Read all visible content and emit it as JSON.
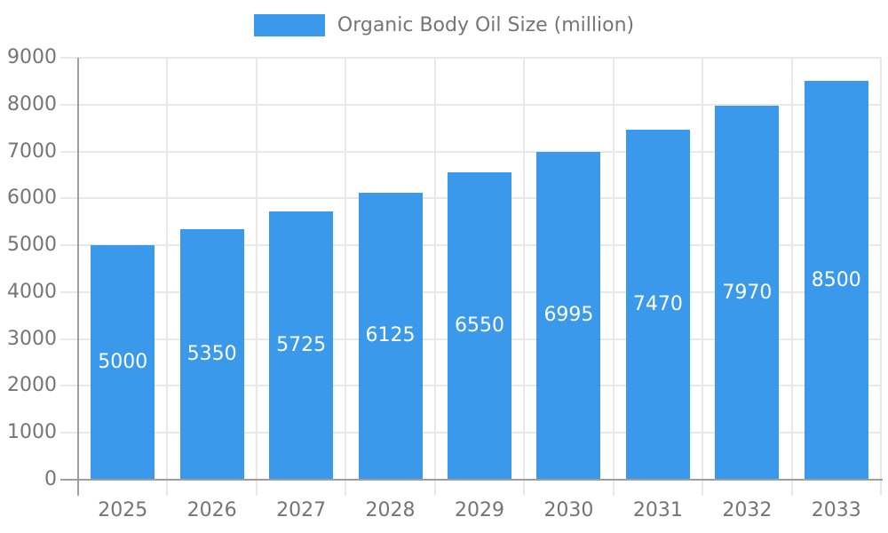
{
  "legend": {
    "label": "Organic Body Oil Size (million)"
  },
  "colors": {
    "bar": "#3b99ec",
    "grid": "#e8e8e8",
    "axis": "#9e9e9e",
    "text": "#757575",
    "bar_label": "#ffffff",
    "background": "#ffffff"
  },
  "chart_data": {
    "type": "bar",
    "title": "Organic Body Oil Size (million)",
    "categories": [
      "2025",
      "2026",
      "2027",
      "2028",
      "2029",
      "2030",
      "2031",
      "2032",
      "2033"
    ],
    "values": [
      5000,
      5350,
      5725,
      6125,
      6550,
      6995,
      7470,
      7970,
      8500
    ],
    "xlabel": "",
    "ylabel": "",
    "ylim": [
      0,
      9000
    ],
    "ytick_step": 1000,
    "ytick_labels": [
      "0",
      "1000",
      "2000",
      "3000",
      "4000",
      "5000",
      "6000",
      "7000",
      "8000",
      "9000"
    ],
    "grid": true,
    "legend_position": "top",
    "bar_value_labels_inside": true
  }
}
